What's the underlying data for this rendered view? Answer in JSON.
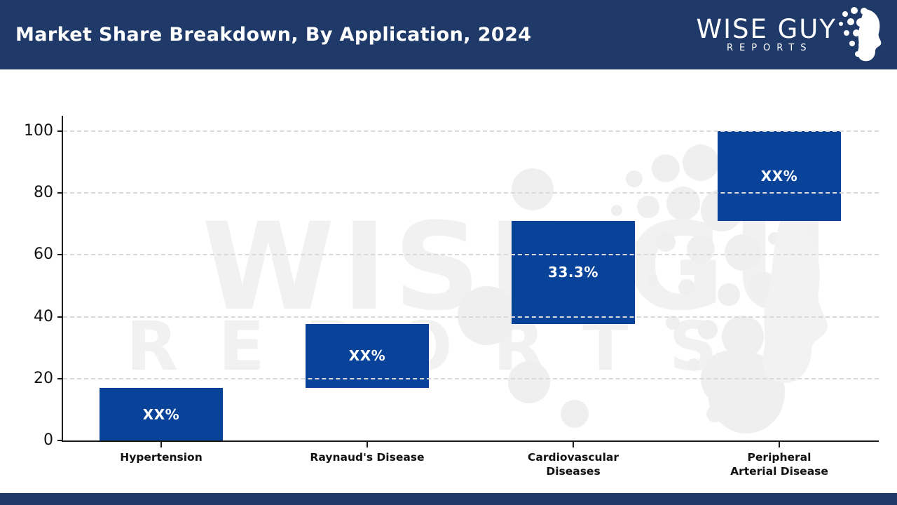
{
  "header": {
    "title": "Market Share Breakdown, By Application, 2024",
    "logo": {
      "line1": "WISE GUY",
      "line2": "REPORTS"
    }
  },
  "colors": {
    "header_bg": "#1f3a68",
    "footer_bg": "#1f3a68",
    "bar_color": "#084299",
    "grid_color": "#d9d9d9",
    "watermark_color": "#f1f1f1"
  },
  "watermark": {
    "line1": "WISE GU",
    "line2": "REPORTS"
  },
  "chart_data": {
    "type": "bar",
    "subtype": "floating-waterfall",
    "title": "Market Share Breakdown, By Application, 2024",
    "xlabel": "",
    "ylabel": "",
    "legend": "none",
    "grid": "horizontal-dashed",
    "ylim": [
      0,
      105
    ],
    "yticks": [
      0,
      20,
      40,
      60,
      80,
      100
    ],
    "categories": [
      {
        "lines": [
          "Hypertension"
        ]
      },
      {
        "lines": [
          "Raynaud's Disease"
        ]
      },
      {
        "lines": [
          "Cardiovascular",
          "Diseases"
        ]
      },
      {
        "lines": [
          "Peripheral",
          "Arterial Disease"
        ]
      }
    ],
    "bars": [
      {
        "category": "Hypertension",
        "start": 0,
        "end": 17,
        "label": "XX%"
      },
      {
        "category": "Raynaud's Disease",
        "start": 17,
        "end": 37.7,
        "label": "XX%"
      },
      {
        "category": "Cardiovascular Diseases",
        "start": 37.7,
        "end": 71,
        "label": "33.3%"
      },
      {
        "category": "Peripheral Arterial Disease",
        "start": 71,
        "end": 100,
        "label": "XX%"
      }
    ]
  }
}
